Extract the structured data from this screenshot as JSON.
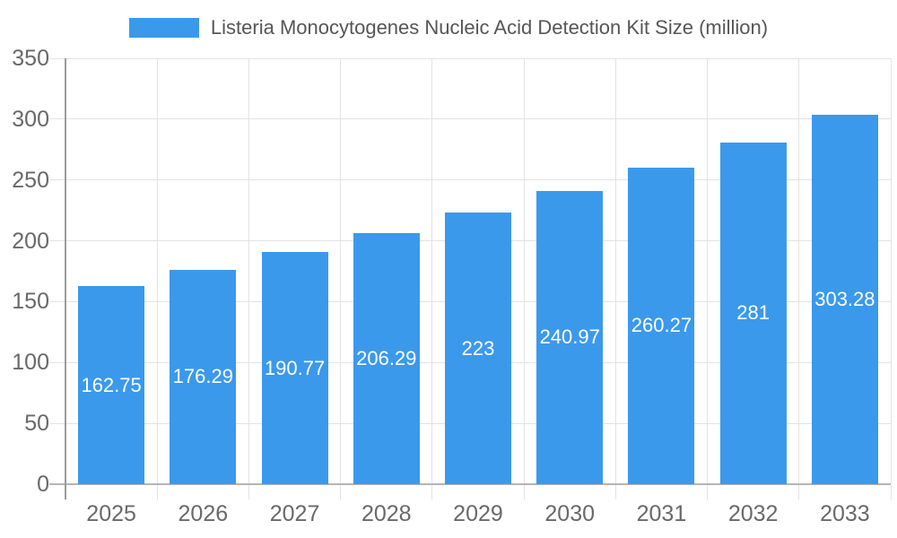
{
  "chart_data": {
    "type": "bar",
    "title": "Listeria Monocytogenes Nucleic Acid Detection Kit Size (million)",
    "legend_position": "top",
    "categories": [
      "2025",
      "2026",
      "2027",
      "2028",
      "2029",
      "2030",
      "2031",
      "2032",
      "2033"
    ],
    "values": [
      162.75,
      176.29,
      190.77,
      206.29,
      223,
      240.97,
      260.27,
      281,
      303.28
    ],
    "value_labels": [
      "162.75",
      "176.29",
      "190.77",
      "206.29",
      "223",
      "240.97",
      "260.27",
      "281",
      "303.28"
    ],
    "xlabel": "",
    "ylabel": "",
    "ylim": [
      0,
      350
    ],
    "yticks": [
      "0",
      "50",
      "100",
      "150",
      "200",
      "250",
      "300",
      "350"
    ],
    "grid": true,
    "colors": {
      "bar": "#3b99ec",
      "value_label": "#ffffff",
      "axis_text": "#696969",
      "legend_text": "#565656",
      "grid_line": "#e3e3e3",
      "y_axis_line": "#9b9b9b",
      "x_axis_line": "#b5b5b5",
      "background": "#ffffff"
    }
  }
}
